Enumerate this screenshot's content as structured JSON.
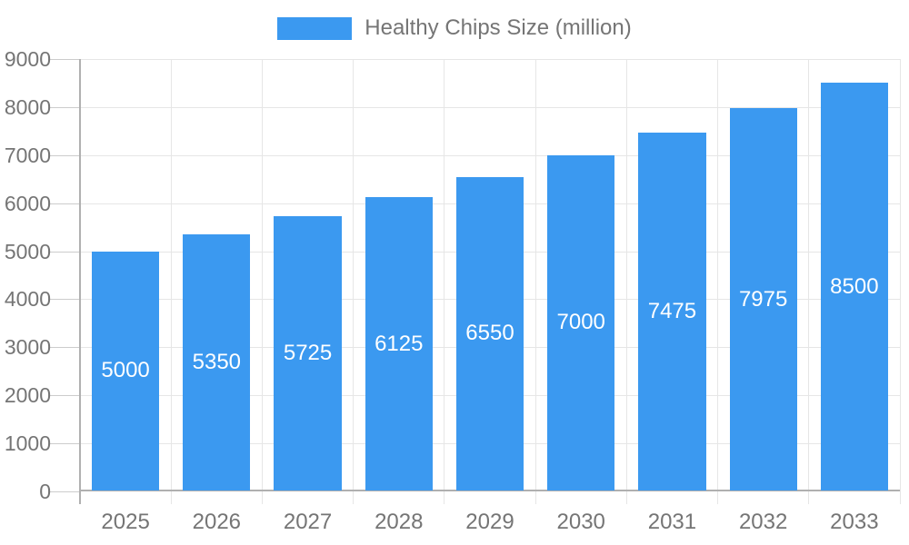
{
  "legend": {
    "label": "Healthy Chips Size (million)",
    "swatch_color": "#3b99f0"
  },
  "chart_data": {
    "type": "bar",
    "title": "Healthy Chips Size (million)",
    "series_name": "Healthy Chips Size (million)",
    "categories": [
      "2025",
      "2026",
      "2027",
      "2028",
      "2029",
      "2030",
      "2031",
      "2032",
      "2033"
    ],
    "values": [
      5000,
      5350,
      5725,
      6125,
      6550,
      7000,
      7475,
      7975,
      8500
    ],
    "value_labels": [
      "5000",
      "5350",
      "5725",
      "6125",
      "6550",
      "7000",
      "7475",
      "7975",
      "8500"
    ],
    "xlabel": "",
    "ylabel": "",
    "ylim": [
      0,
      9000
    ],
    "ytick_step": 1000,
    "yticks": [
      0,
      1000,
      2000,
      3000,
      4000,
      5000,
      6000,
      7000,
      8000,
      9000
    ],
    "grid": true,
    "legend_position": "top",
    "colors": {
      "bar": "#3b99f0",
      "value_label": "#ffffff",
      "axis_text": "#757575",
      "gridline": "#e6e6e6",
      "axis_line": "#b0b0b0",
      "tick_stub": "#cccccc"
    }
  }
}
